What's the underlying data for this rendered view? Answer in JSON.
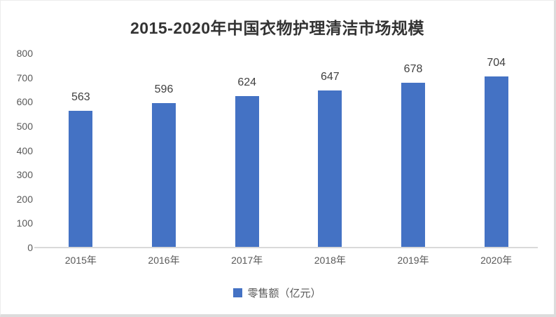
{
  "chart_data": {
    "type": "bar",
    "title": "2015-2020年中国衣物护理清洁市场规模",
    "categories": [
      "2015年",
      "2016年",
      "2017年",
      "2018年",
      "2019年",
      "2020年"
    ],
    "series": [
      {
        "name": "零售额（亿元）",
        "values": [
          563,
          596,
          624,
          647,
          678,
          704
        ]
      }
    ],
    "xlabel": "",
    "ylabel": "",
    "ylim": [
      0,
      800
    ],
    "ytick_step": 100,
    "ytick_labels": [
      "0",
      "100",
      "200",
      "300",
      "400",
      "500",
      "600",
      "700",
      "800"
    ],
    "grid": false,
    "legend_position": "bottom",
    "colors": {
      "bar": "#4472C4",
      "title_text": "#333333",
      "axis_text": "#595959",
      "value_label_text": "#404040",
      "axis_line": "#d9d9d9"
    }
  },
  "legend": {
    "label": "零售额（亿元）"
  }
}
